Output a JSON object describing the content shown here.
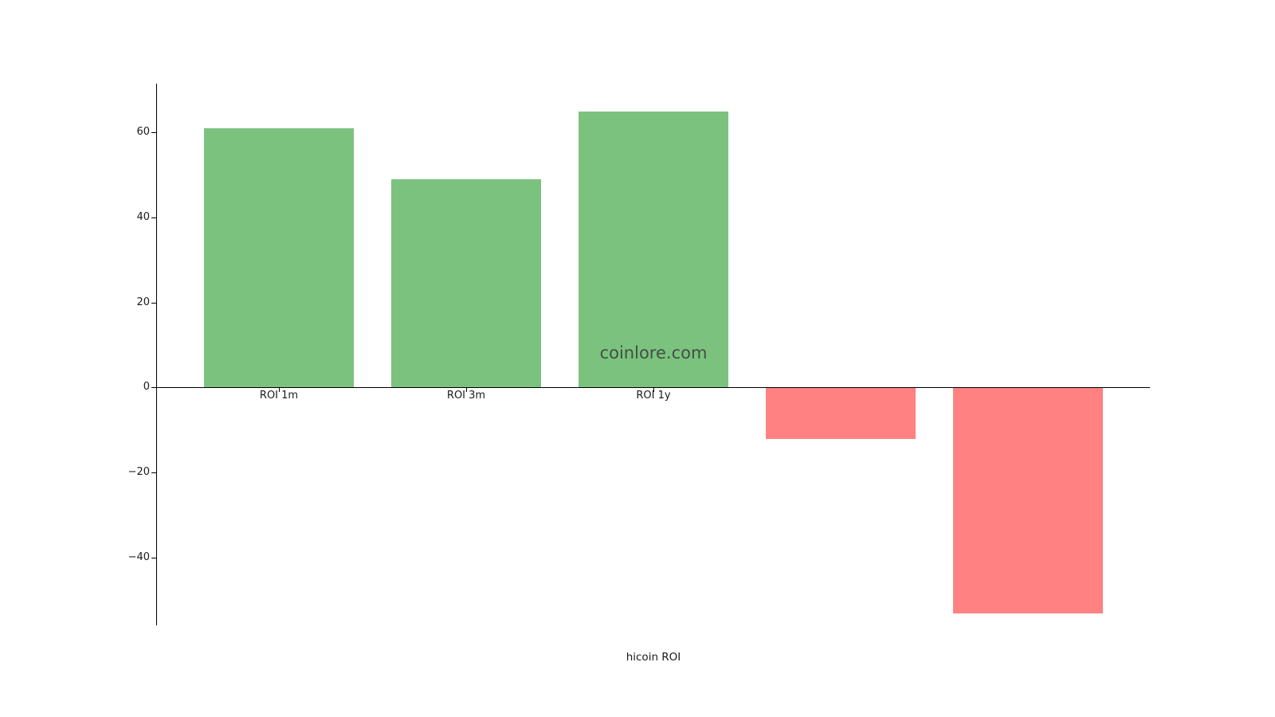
{
  "watermark": "coinlore.com",
  "chart_data": {
    "type": "bar",
    "title": "",
    "xlabel": "hicoin ROI",
    "ylabel": "",
    "categories": [
      "ROI 1m",
      "ROI 3m",
      "ROI 1y",
      "",
      ""
    ],
    "values": [
      61,
      49,
      65,
      -12,
      -53
    ],
    "yticks": [
      60,
      40,
      20,
      0,
      -20,
      -40
    ],
    "ylim": [
      -56,
      71.5
    ],
    "xlim": [
      -0.655,
      4.65
    ],
    "bar_width": 0.8,
    "grid": false,
    "legend": "none",
    "positive_color": "#7cc27f",
    "negative_color": "#ff8181",
    "axis_color": "#000000",
    "tick_text_color": "#1a1a1a",
    "watermark_color": "rgba(48,48,48,0.78)"
  }
}
